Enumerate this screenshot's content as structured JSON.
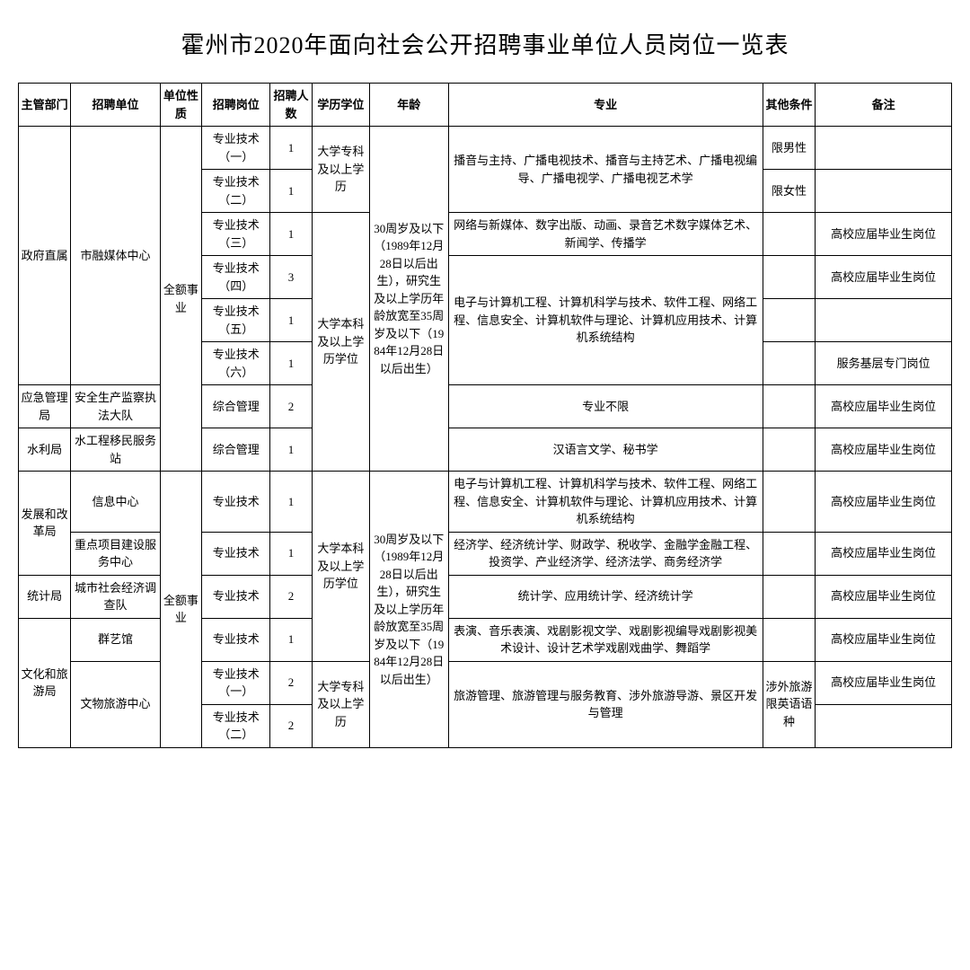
{
  "title": "霍州市2020年面向社会公开招聘事业单位人员岗位一览表",
  "headers": {
    "dept": "主管部门",
    "unit": "招聘单位",
    "nature": "单位性质",
    "post": "招聘岗位",
    "count": "招聘人数",
    "edu": "学历学位",
    "age": "年龄",
    "major": "专业",
    "other": "其他条件",
    "remark": "备注"
  },
  "dept1": "政府直属",
  "dept2": "应急管理局",
  "dept3": "水利局",
  "dept4": "发展和改革局",
  "dept5": "统计局",
  "dept6": "文化和旅游局",
  "unit1": "市融媒体中心",
  "unit2": "安全生产监察执法大队",
  "unit3": "水工程移民服务站",
  "unit4": "信息中心",
  "unit5": "重点项目建设服务中心",
  "unit6": "城市社会经济调查队",
  "unit7": "群艺馆",
  "unit8": "文物旅游中心",
  "nature1": "全额事业",
  "nature2": "全额事业",
  "post1": "专业技术（一）",
  "post2": "专业技术（二）",
  "post3": "专业技术（三）",
  "post4": "专业技术（四）",
  "post5": "专业技术（五）",
  "post6": "专业技术（六）",
  "post7": "综合管理",
  "post8": "综合管理",
  "post9": "专业技术",
  "post10": "专业技术",
  "post11": "专业技术",
  "post12": "专业技术",
  "post13": "专业技术（一）",
  "post14": "专业技术（二）",
  "c1": "1",
  "c2": "1",
  "c3": "1",
  "c4": "3",
  "c5": "1",
  "c6": "1",
  "c7": "2",
  "c8": "1",
  "c9": "1",
  "c10": "1",
  "c11": "2",
  "c12": "1",
  "c13": "2",
  "c14": "2",
  "edu1": "大学专科及以上学历",
  "edu2": "大学本科及以上学历学位",
  "edu3": "大学本科及以上学历学位",
  "edu4": "大学专科及以上学历",
  "age1": "30周岁及以下（1989年12月28日以后出生），研究生及以上学历年龄放宽至35周岁及以下（1984年12月28日以后出生）",
  "age2": "30周岁及以下（1989年12月28日以后出生），研究生及以上学历年龄放宽至35周岁及以下（1984年12月28日以后出生）",
  "major1": "播音与主持、广播电视技术、播音与主持艺术、广播电视编导、广播电视学、广播电视艺术学",
  "major2": "网络与新媒体、数字出版、动画、录音艺术数字媒体艺术、新闻学、传播学",
  "major3": "电子与计算机工程、计算机科学与技术、软件工程、网络工程、信息安全、计算机软件与理论、计算机应用技术、计算机系统结构",
  "major4": "专业不限",
  "major5": "汉语言文学、秘书学",
  "major6": "电子与计算机工程、计算机科学与技术、软件工程、网络工程、信息安全、计算机软件与理论、计算机应用技术、计算机系统结构",
  "major7": "经济学、经济统计学、财政学、税收学、金融学金融工程、投资学、产业经济学、经济法学、商务经济学",
  "major8": "统计学、应用统计学、经济统计学",
  "major9": "表演、音乐表演、戏剧影视文学、戏剧影视编导戏剧影视美术设计、设计艺术学戏剧戏曲学、舞蹈学",
  "major10": "旅游管理、旅游管理与服务教育、涉外旅游导游、景区开发与管理",
  "other1": "限男性",
  "other2": "限女性",
  "other3": "涉外旅游限英语语种",
  "remark1": "高校应届毕业生岗位",
  "remark2": "服务基层专门岗位"
}
